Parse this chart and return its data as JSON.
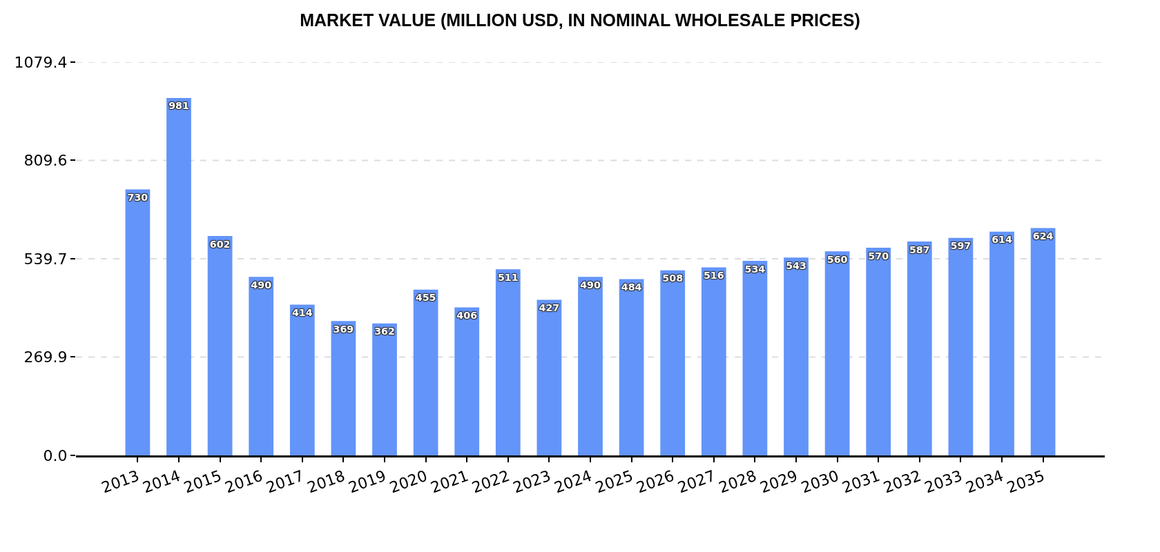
{
  "chart_data": {
    "type": "bar",
    "title": "MARKET VALUE (MILLION USD, IN NOMINAL WHOLESALE PRICES)",
    "categories": [
      "2013",
      "2014",
      "2015",
      "2016",
      "2017",
      "2018",
      "2019",
      "2020",
      "2021",
      "2022",
      "2023",
      "2024",
      "2025",
      "2026",
      "2027",
      "2028",
      "2029",
      "2030",
      "2031",
      "2032",
      "2033",
      "2034",
      "2035"
    ],
    "values": [
      730,
      981,
      602,
      490,
      414,
      369,
      362,
      455,
      406,
      511,
      427,
      490,
      484,
      508,
      516,
      534,
      543,
      560,
      570,
      587,
      597,
      614,
      624
    ],
    "color": "#6394f9",
    "ylim": [
      0,
      1079.4
    ],
    "yticks": [
      {
        "value": 0,
        "label": "0.0"
      },
      269.9,
      539.7,
      809.6,
      1079.4
    ],
    "grid": "y",
    "data_labels": true
  }
}
